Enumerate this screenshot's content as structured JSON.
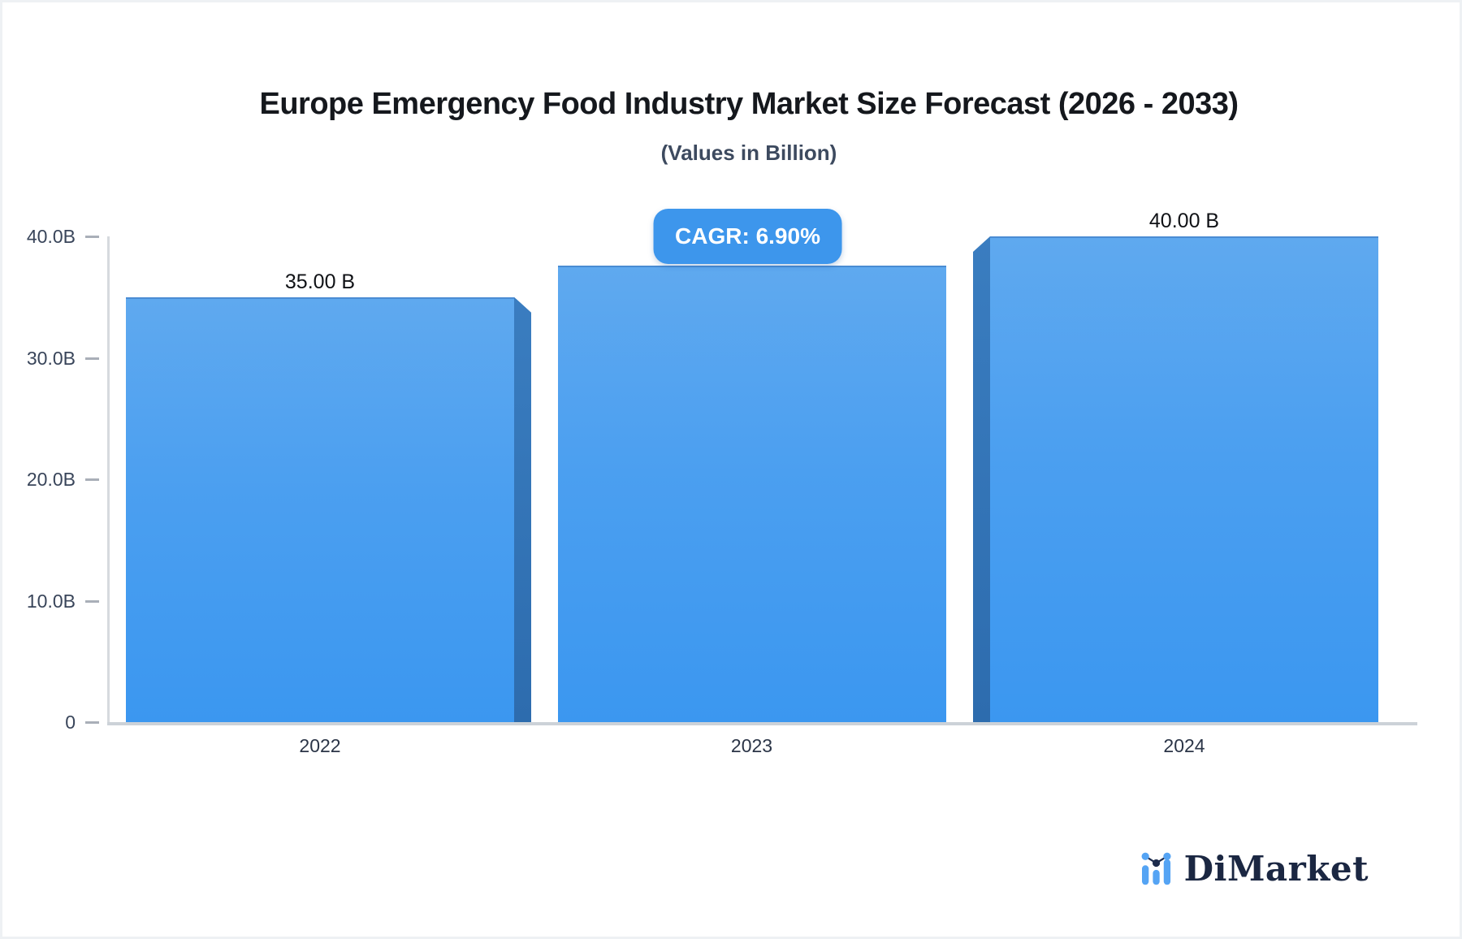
{
  "header": {
    "title": "Europe Emergency Food Industry Market Size Forecast (2026 - 2033)",
    "subtitle": "(Values in Billion)"
  },
  "badge": {
    "label": "CAGR: 6.90%",
    "color": "#3d96ec"
  },
  "chart_data": {
    "type": "bar",
    "title": "Europe Emergency Food Industry Market Size Forecast (2026 - 2033)",
    "subtitle": "(Values in Billion)",
    "unit": "Billion",
    "categories": [
      "2022",
      "2023",
      "2024"
    ],
    "values": [
      35.0,
      37.6,
      40.0
    ],
    "value_labels": [
      "35.00 B",
      "",
      "40.00 B"
    ],
    "annotation": {
      "text": "CAGR: 6.90%",
      "attached_to": "2023"
    },
    "ylim": [
      0,
      40
    ],
    "yticks": [
      {
        "label": "40.0B",
        "value": 40
      },
      {
        "label": "30.0B",
        "value": 30
      },
      {
        "label": "20.0B",
        "value": 20
      },
      {
        "label": "10.0B",
        "value": 10
      },
      {
        "label": "0",
        "value": 0
      }
    ],
    "grid": false,
    "legend": false,
    "colors": {
      "bar_top": "#5fa9ef",
      "bar_bottom": "#3b97f0",
      "bar_side": "#2f72b6",
      "axis_line": "#ccd2d8",
      "tick_text": "#39455a"
    }
  },
  "watermark": {
    "brand": "DiMarket",
    "icon": "bar-chart-logo-icon",
    "icon_colors": {
      "bars": "#55a4f4",
      "accent_dot": "#1d2b4c"
    }
  }
}
